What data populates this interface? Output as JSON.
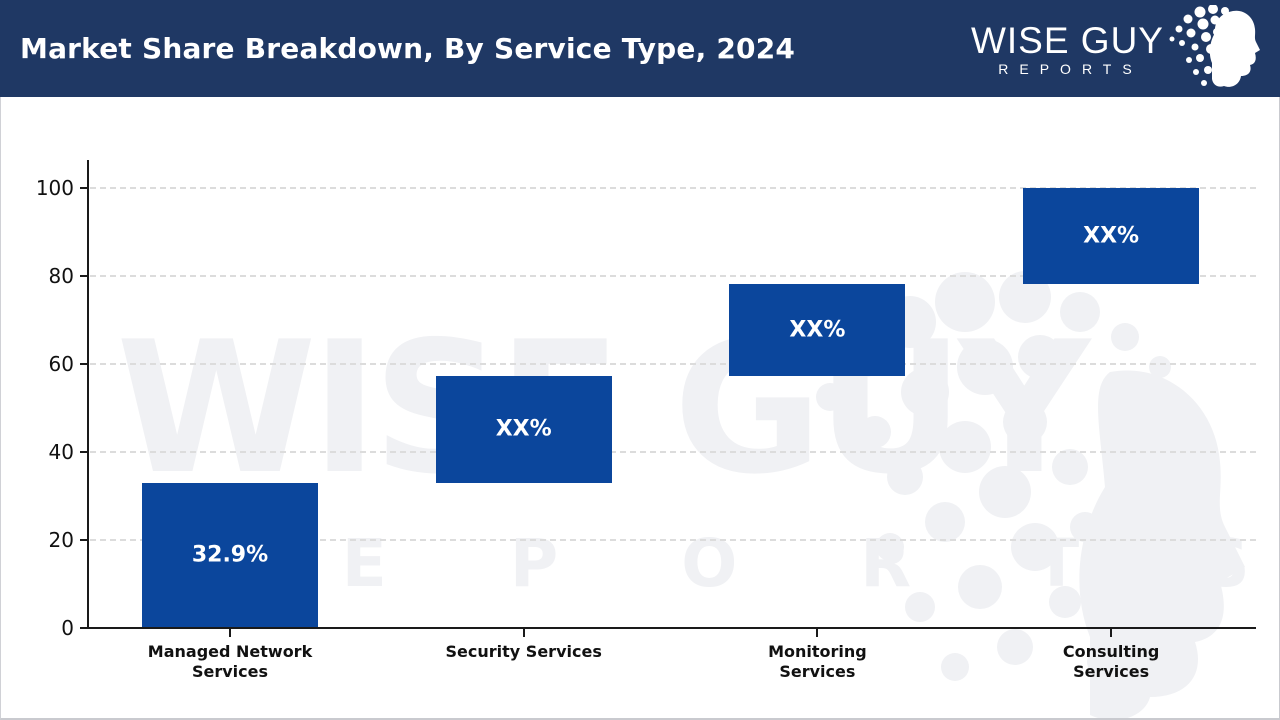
{
  "header": {
    "title": "Market Share Breakdown, By Service Type, 2024",
    "bg_color": "#1f3864",
    "brand": {
      "line1": "WISE GUY",
      "line2": "REPORTS"
    }
  },
  "watermark": {
    "line1": "WISE GUY",
    "line2": "R E P O R T S"
  },
  "chart_data": {
    "type": "bar",
    "variant": "waterfall-stacked-breakdown",
    "title": "Market Share Breakdown, By Service Type, 2024",
    "categories": [
      "Managed Network Services",
      "Security Services",
      "Monitoring Services",
      "Consulting Services"
    ],
    "segments": [
      {
        "label": "Managed Network Services",
        "label_lines": [
          "Managed Network",
          "Services"
        ],
        "start": 0,
        "end": 32.9,
        "value_label": "32.9%"
      },
      {
        "label": "Security Services",
        "label_lines": [
          "Security Services"
        ],
        "start": 32.9,
        "end": 57.2,
        "value_label": "XX%"
      },
      {
        "label": "Monitoring Services",
        "label_lines": [
          "Monitoring",
          "Services"
        ],
        "start": 57.2,
        "end": 78.1,
        "value_label": "XX%"
      },
      {
        "label": "Consulting Services",
        "label_lines": [
          "Consulting",
          "Services"
        ],
        "start": 78.1,
        "end": 100,
        "value_label": "XX%"
      }
    ],
    "ylim": [
      0,
      100
    ],
    "yticks": [
      0,
      20,
      40,
      60,
      80,
      100
    ],
    "grid": "horizontal-dashed",
    "legend": "none",
    "bar_color": "#0b469c",
    "value_label_color": "#ffffff"
  }
}
